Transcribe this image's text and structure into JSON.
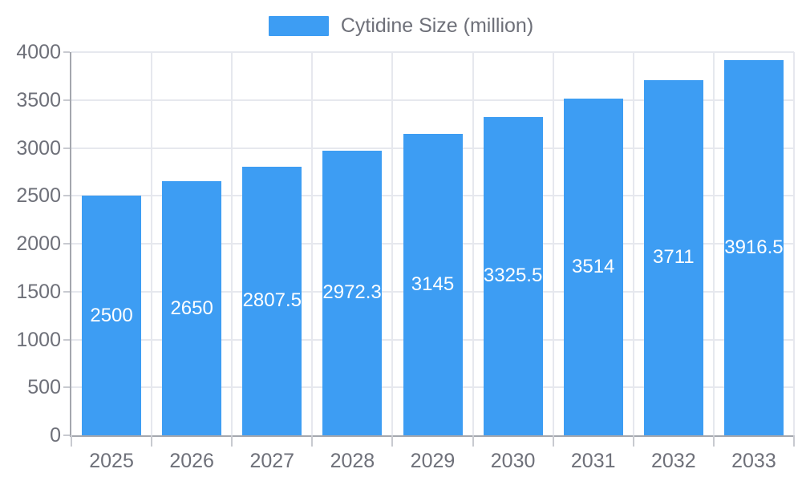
{
  "legend": {
    "label": "Cytidine Size (million)"
  },
  "chart_data": {
    "type": "bar",
    "title": "",
    "xlabel": "",
    "ylabel": "",
    "categories": [
      "2025",
      "2026",
      "2027",
      "2028",
      "2029",
      "2030",
      "2031",
      "2032",
      "2033"
    ],
    "series": [
      {
        "name": "Cytidine Size (million)",
        "values": [
          2500,
          2650,
          2807.5,
          2972.375,
          3145,
          3325.5,
          3514,
          3711,
          3916.5
        ]
      }
    ],
    "bar_labels": [
      "2500",
      "2650",
      "2807.5",
      "2972.375",
      "3145",
      "3325.5",
      "3514",
      "3711",
      "3916.5"
    ],
    "ylim": [
      0,
      4000
    ],
    "yticks": [
      0,
      500,
      1000,
      1500,
      2000,
      2500,
      3000,
      3500,
      4000
    ],
    "grid": true,
    "legend_position": "top-center",
    "colors": {
      "bar": "#3D9DF3",
      "bar_label": "#FFFFFF",
      "axis_text": "#6E7079",
      "legend_text": "#6E7079",
      "axis_line": "#A4A7AE",
      "tick_line": "#C8CAD0",
      "gridline": "#E6E8EE",
      "background": "#FFFFFF"
    }
  }
}
